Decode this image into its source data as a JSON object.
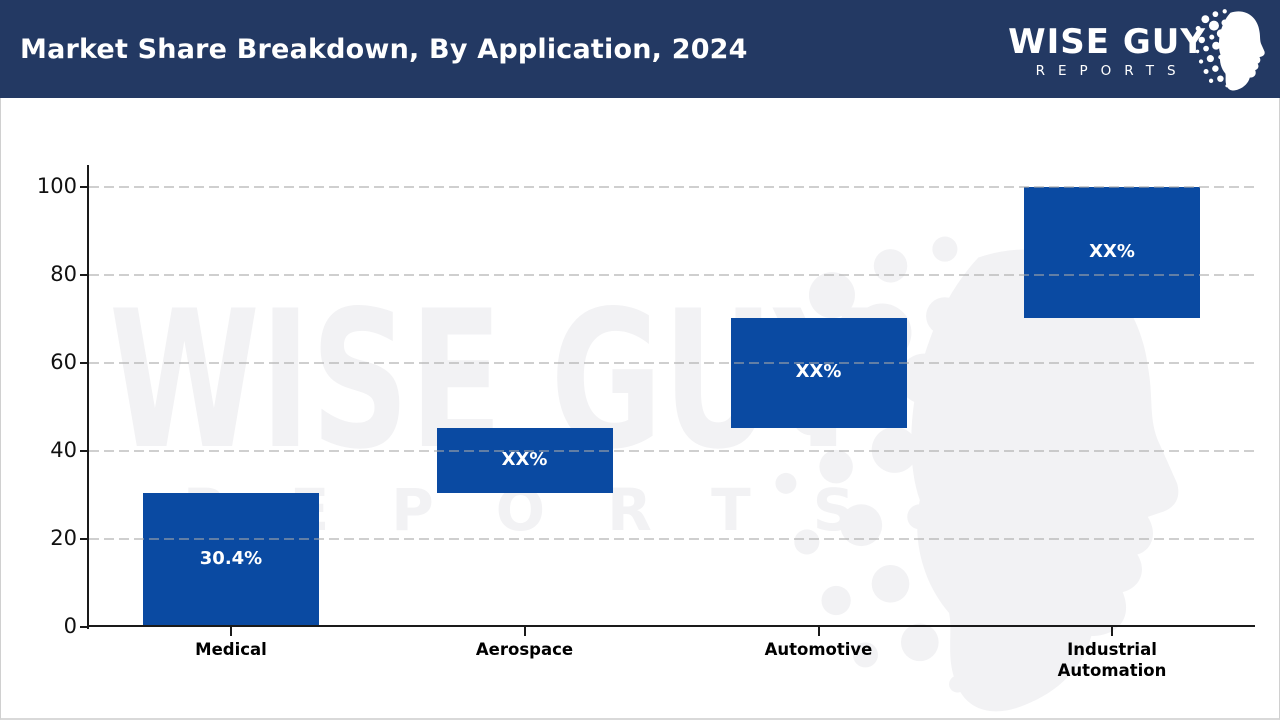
{
  "header": {
    "title": "Market Share Breakdown, By Application, 2024",
    "logo": {
      "line1": "WISE GUY",
      "line2": "REPORTS"
    }
  },
  "watermark": {
    "line1": "WISE GUY",
    "line2": "REPORTS"
  },
  "colors": {
    "header_bg": "#233963",
    "bar": "#0A4AA2",
    "axis": "#1a1a1a",
    "gridline": "#d9d9d9",
    "watermark": "#f2f2f4"
  },
  "chart_data": {
    "type": "bar",
    "subtype": "waterfall",
    "title": "Market Share Breakdown, By Application, 2024",
    "categories": [
      "Medical",
      "Aerospace",
      "Automotive",
      "Industrial Automation"
    ],
    "segments": [
      {
        "category": "Medical",
        "start": 0,
        "end": 30.4,
        "label": "30.4%"
      },
      {
        "category": "Aerospace",
        "start": 30.4,
        "end": 45.2,
        "label": "XX%"
      },
      {
        "category": "Automotive",
        "start": 45.2,
        "end": 70.2,
        "label": "XX%"
      },
      {
        "category": "Industrial Automation",
        "start": 70.2,
        "end": 100,
        "label": "XX%"
      }
    ],
    "xlabel": "",
    "ylabel": "",
    "ylim": [
      0,
      100
    ],
    "yticks": [
      0,
      20,
      40,
      60,
      80,
      100
    ],
    "grid": true,
    "grid_style": "dashed",
    "legend": "none",
    "bar_color": "#0A4AA2",
    "value_label_color": "#ffffff"
  }
}
